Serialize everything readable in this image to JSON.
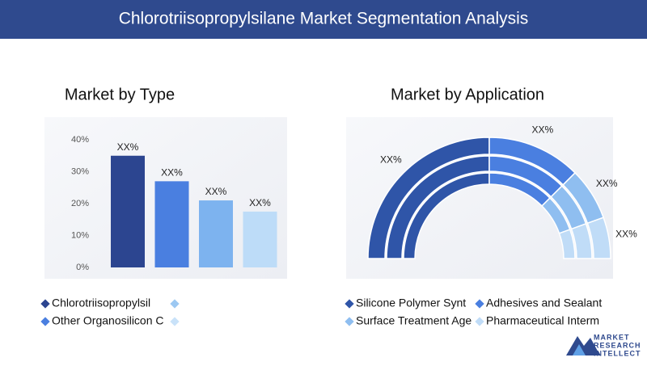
{
  "header": {
    "title": "Chlorotriisopropylsilane Market Segmentation Analysis"
  },
  "chart_data": [
    {
      "type": "bar",
      "title": "Market by Type",
      "categories": [
        null,
        null,
        null,
        null
      ],
      "values": [
        35,
        27,
        21,
        17.5
      ],
      "value_labels": [
        "XX%",
        "XX%",
        "XX%",
        "XX%"
      ],
      "colors": [
        "#2c4590",
        "#4a7fe0",
        "#7db3ef",
        "#bddcf8"
      ],
      "ylim": [
        0,
        40
      ],
      "yticks": [
        {
          "value": 0,
          "label": "0%"
        },
        {
          "value": 10,
          "label": "10%"
        },
        {
          "value": 20,
          "label": "20%"
        },
        {
          "value": 30,
          "label": "30%"
        },
        {
          "value": 40,
          "label": "40%"
        }
      ],
      "legend": [
        {
          "name": "Chlorotriisopropylsil",
          "color": "#2c4590"
        },
        {
          "name": null,
          "color": "#9cc8f2"
        },
        {
          "name": "Other Organosilicon C",
          "color": "#4a7fe0"
        },
        {
          "name": null,
          "color": "#c9e2f9"
        }
      ]
    },
    {
      "type": "donut",
      "title": "Market by Application",
      "categories": [
        "Silicone Polymer Synt",
        "Adhesives and Sealant",
        "Surface Treatment Age",
        "Pharmaceutical Interm"
      ],
      "values": [
        50,
        25,
        14,
        11
      ],
      "value_labels": [
        "XX%",
        "XX%",
        "XX%",
        "XX%"
      ],
      "colors": [
        "#2f55a8",
        "#4a7fe0",
        "#8fbef0",
        "#c0dcf7"
      ]
    }
  ],
  "logo": {
    "lines": [
      "MARKET",
      "RESEARCH",
      "INTELLECT"
    ]
  }
}
